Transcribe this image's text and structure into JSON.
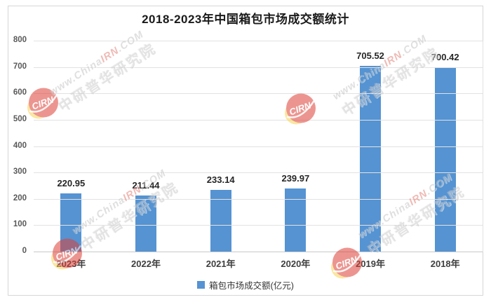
{
  "title": "2018-2023年中国箱包市场成交额统计",
  "chart_data": {
    "type": "bar",
    "title": "2018-2023年中国箱包市场成交额统计",
    "categories": [
      "2023年",
      "2022年",
      "2021年",
      "2020年",
      "2019年",
      "2018年"
    ],
    "values": [
      220.95,
      211.44,
      233.14,
      239.97,
      705.52,
      700.42
    ],
    "value_labels": [
      "220.95",
      "211.44",
      "233.14",
      "239.97",
      "705.52",
      "700.42"
    ],
    "xlabel": "",
    "ylabel": "",
    "ylim": [
      0,
      800
    ],
    "ytick_interval": 100,
    "yticks": [
      "800",
      "700",
      "600",
      "500",
      "400",
      "300",
      "200",
      "100",
      "0"
    ],
    "grid": true,
    "legend_position": "bottom",
    "legend_label": "箱包市场成交额(亿元)",
    "bar_color": "#5593d2"
  },
  "watermark": {
    "logo_text": "CIRN",
    "url_pre": "www.China",
    "url_mid": "IRN",
    "url_post": ".COM",
    "org_name": "中研普华研究院",
    "colors": {
      "logo_red": "#dd4036",
      "logo_yellow": "#f7d04c",
      "text_gray": "#c6c6c6",
      "text_red": "#e2837a"
    }
  },
  "colors": {
    "bar": "#5593d2",
    "gridline": "#e2e2e2",
    "axis_line": "#c8c8c8",
    "frame_border": "#d6d6d6",
    "background": "#ffffff"
  }
}
